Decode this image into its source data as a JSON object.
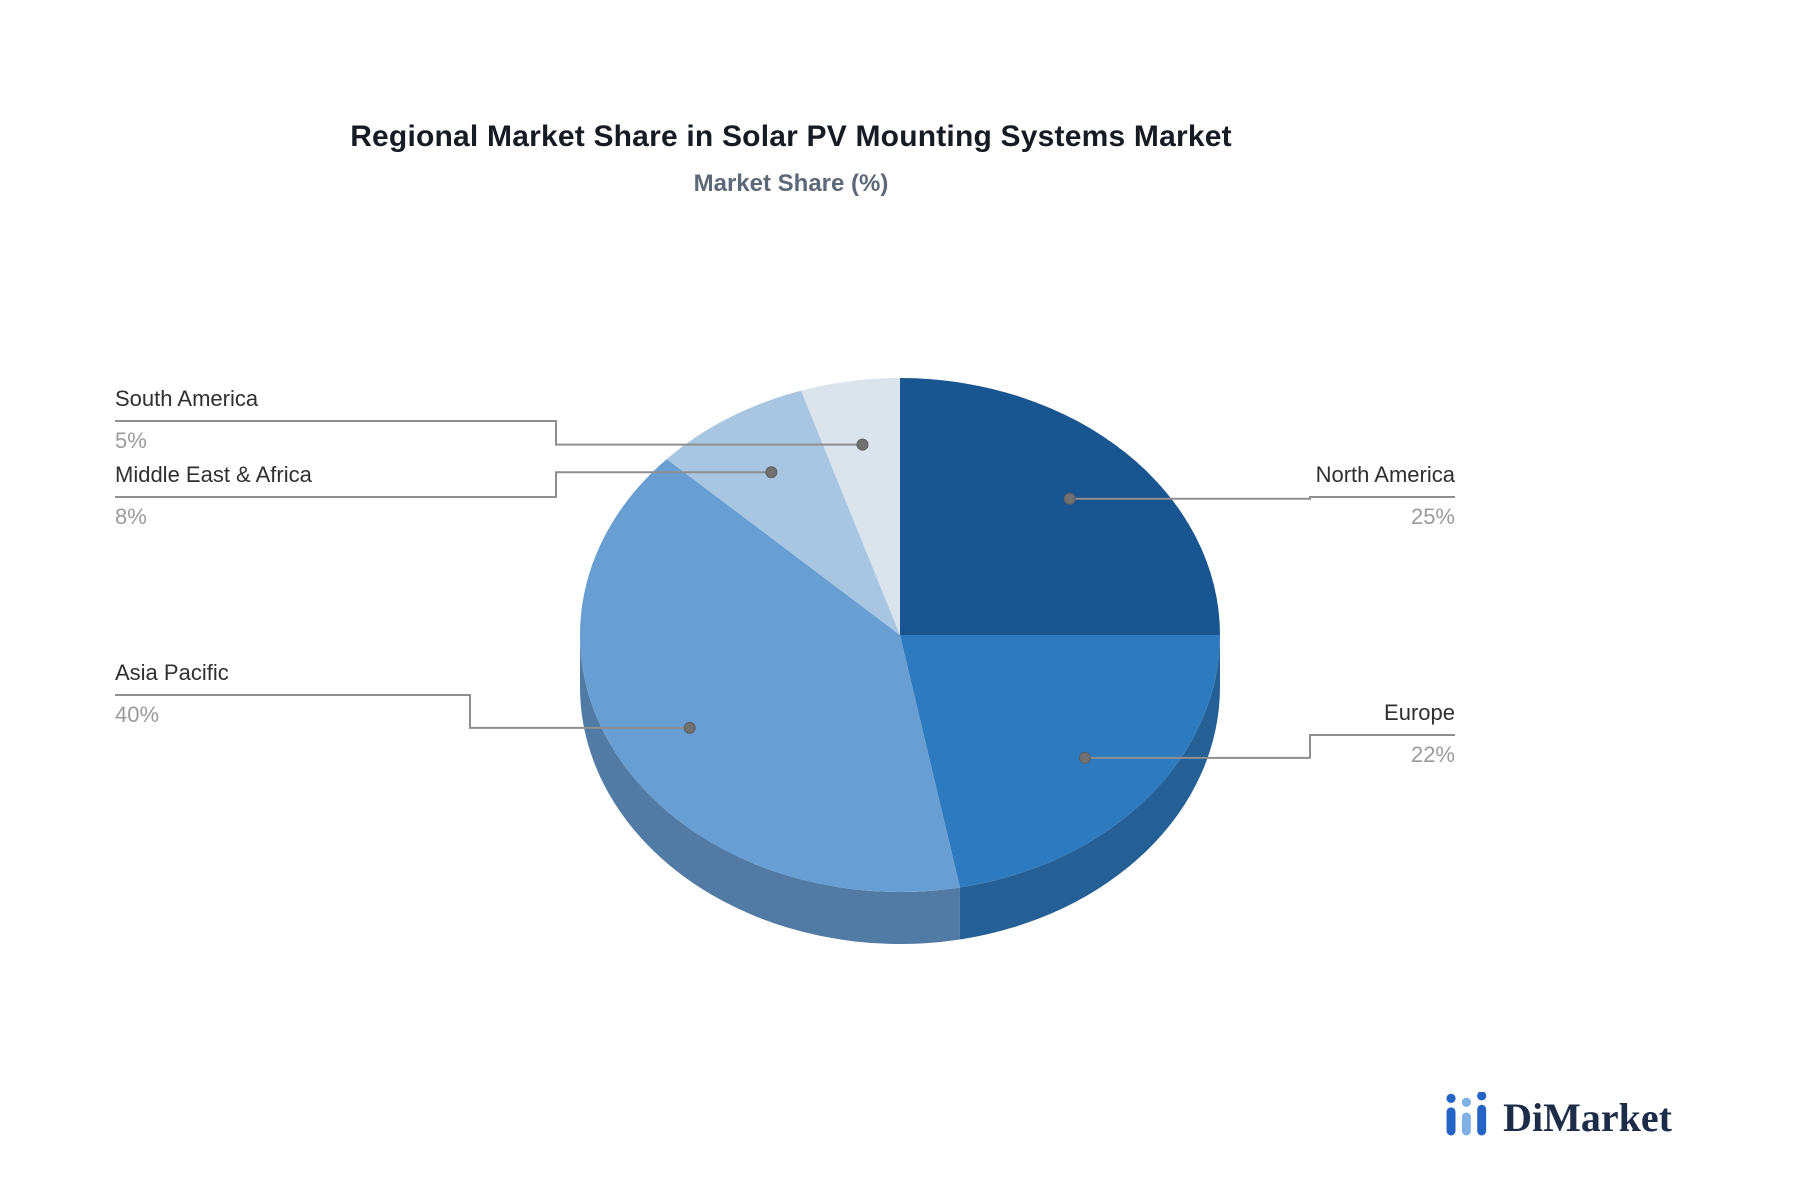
{
  "title": "Regional Market Share in Solar PV Mounting Systems Market",
  "subtitle": "Market Share (%)",
  "logo": {
    "text": "DiMarket"
  },
  "chart_data": {
    "type": "pie",
    "title": "Regional Market Share in Solar PV Mounting Systems Market",
    "subtitle": "Market Share (%)",
    "unit": "%",
    "effect_3d": true,
    "start_angle": "12-o-clock, clockwise",
    "legend_position": "outside labels with leader lines",
    "regions": [
      {
        "name": "North America",
        "value": 25,
        "pct_label": "25%",
        "color": "#195590"
      },
      {
        "name": "Europe",
        "value": 22,
        "pct_label": "22%",
        "color": "#2e7abf"
      },
      {
        "name": "Asia Pacific",
        "value": 40,
        "pct_label": "40%",
        "color": "#689ed2"
      },
      {
        "name": "Middle East & Africa",
        "value": 8,
        "pct_label": "8%",
        "color": "#a8c5e2"
      },
      {
        "name": "South America",
        "value": 5,
        "pct_label": "5%",
        "color": "#dbe3ed"
      }
    ],
    "style": {
      "leader_line_color": "#8f8f8f",
      "dot_color": "#717171",
      "label_text_color": "#303030",
      "value_text_color": "#9b9b9b",
      "title_color": "#161b24",
      "subtitle_color": "#5d6878",
      "logo_navy": "#1d2c49",
      "logo_blue": "#2563c4",
      "logo_light_blue": "#7fb0e6",
      "background": "#ffffff"
    }
  }
}
